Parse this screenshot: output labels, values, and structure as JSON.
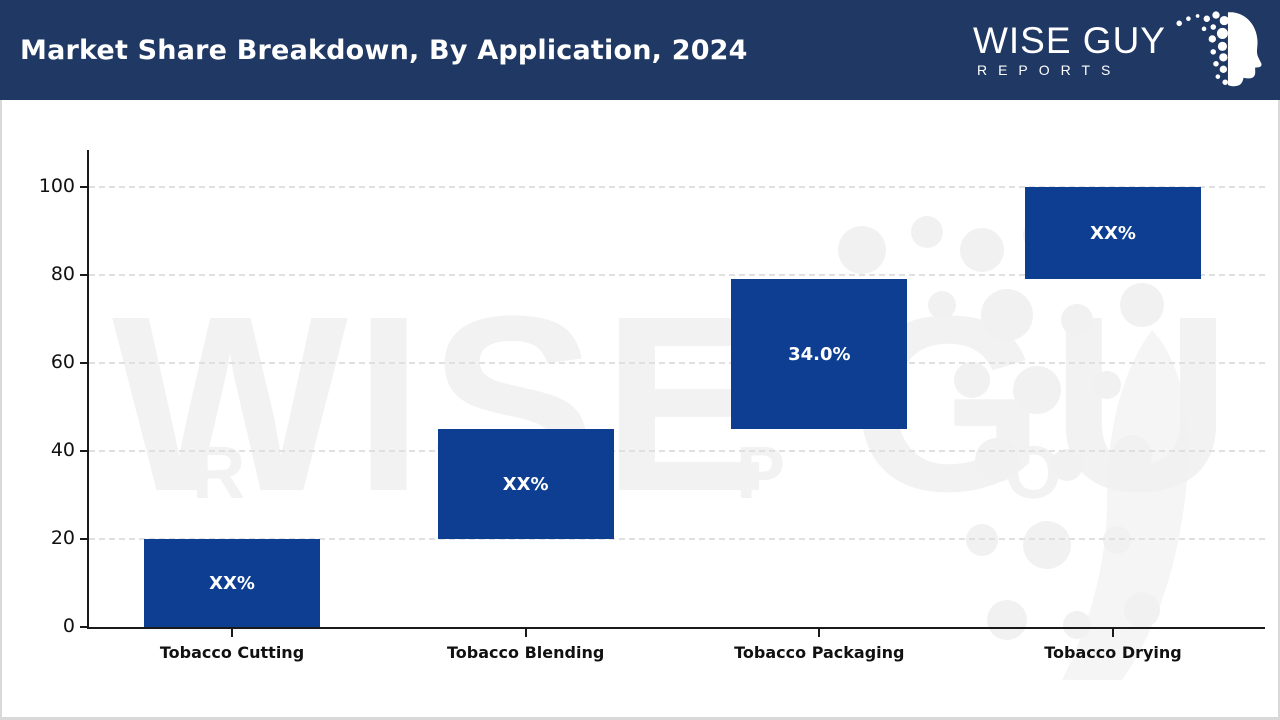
{
  "header": {
    "title": "Market Share Breakdown, By Application, 2024",
    "bg_color": "#1f3864",
    "logo": {
      "line1": "WISE GUY",
      "line2": "REPORTS"
    }
  },
  "watermark": {
    "line1": "WISE GU",
    "line2": "R E P O R T S"
  },
  "chart_data": {
    "type": "bar",
    "subtype": "waterfall",
    "title": "Market Share Breakdown, By Application, 2024",
    "categories": [
      "Tobacco Cutting",
      "Tobacco Blending",
      "Tobacco Packaging",
      "Tobacco Drying"
    ],
    "segments": [
      {
        "category": "Tobacco Cutting",
        "start": 0,
        "end": 20,
        "value": 20,
        "label": "XX%"
      },
      {
        "category": "Tobacco Blending",
        "start": 20,
        "end": 45,
        "value": 25,
        "label": "XX%"
      },
      {
        "category": "Tobacco Packaging",
        "start": 45,
        "end": 79,
        "value": 34,
        "label": "34.0%"
      },
      {
        "category": "Tobacco Drying",
        "start": 79,
        "end": 100,
        "value": 21,
        "label": "XX%"
      }
    ],
    "y_ticks": [
      0,
      20,
      40,
      60,
      80,
      100
    ],
    "ylim": [
      0,
      108
    ],
    "xlabel": "",
    "ylabel": "",
    "bar_color": "#0d3e92",
    "bar_label_color": "#ffffff",
    "grid": "horizontal-dashed",
    "grid_color": "#e0e0e0",
    "legend": "none"
  }
}
